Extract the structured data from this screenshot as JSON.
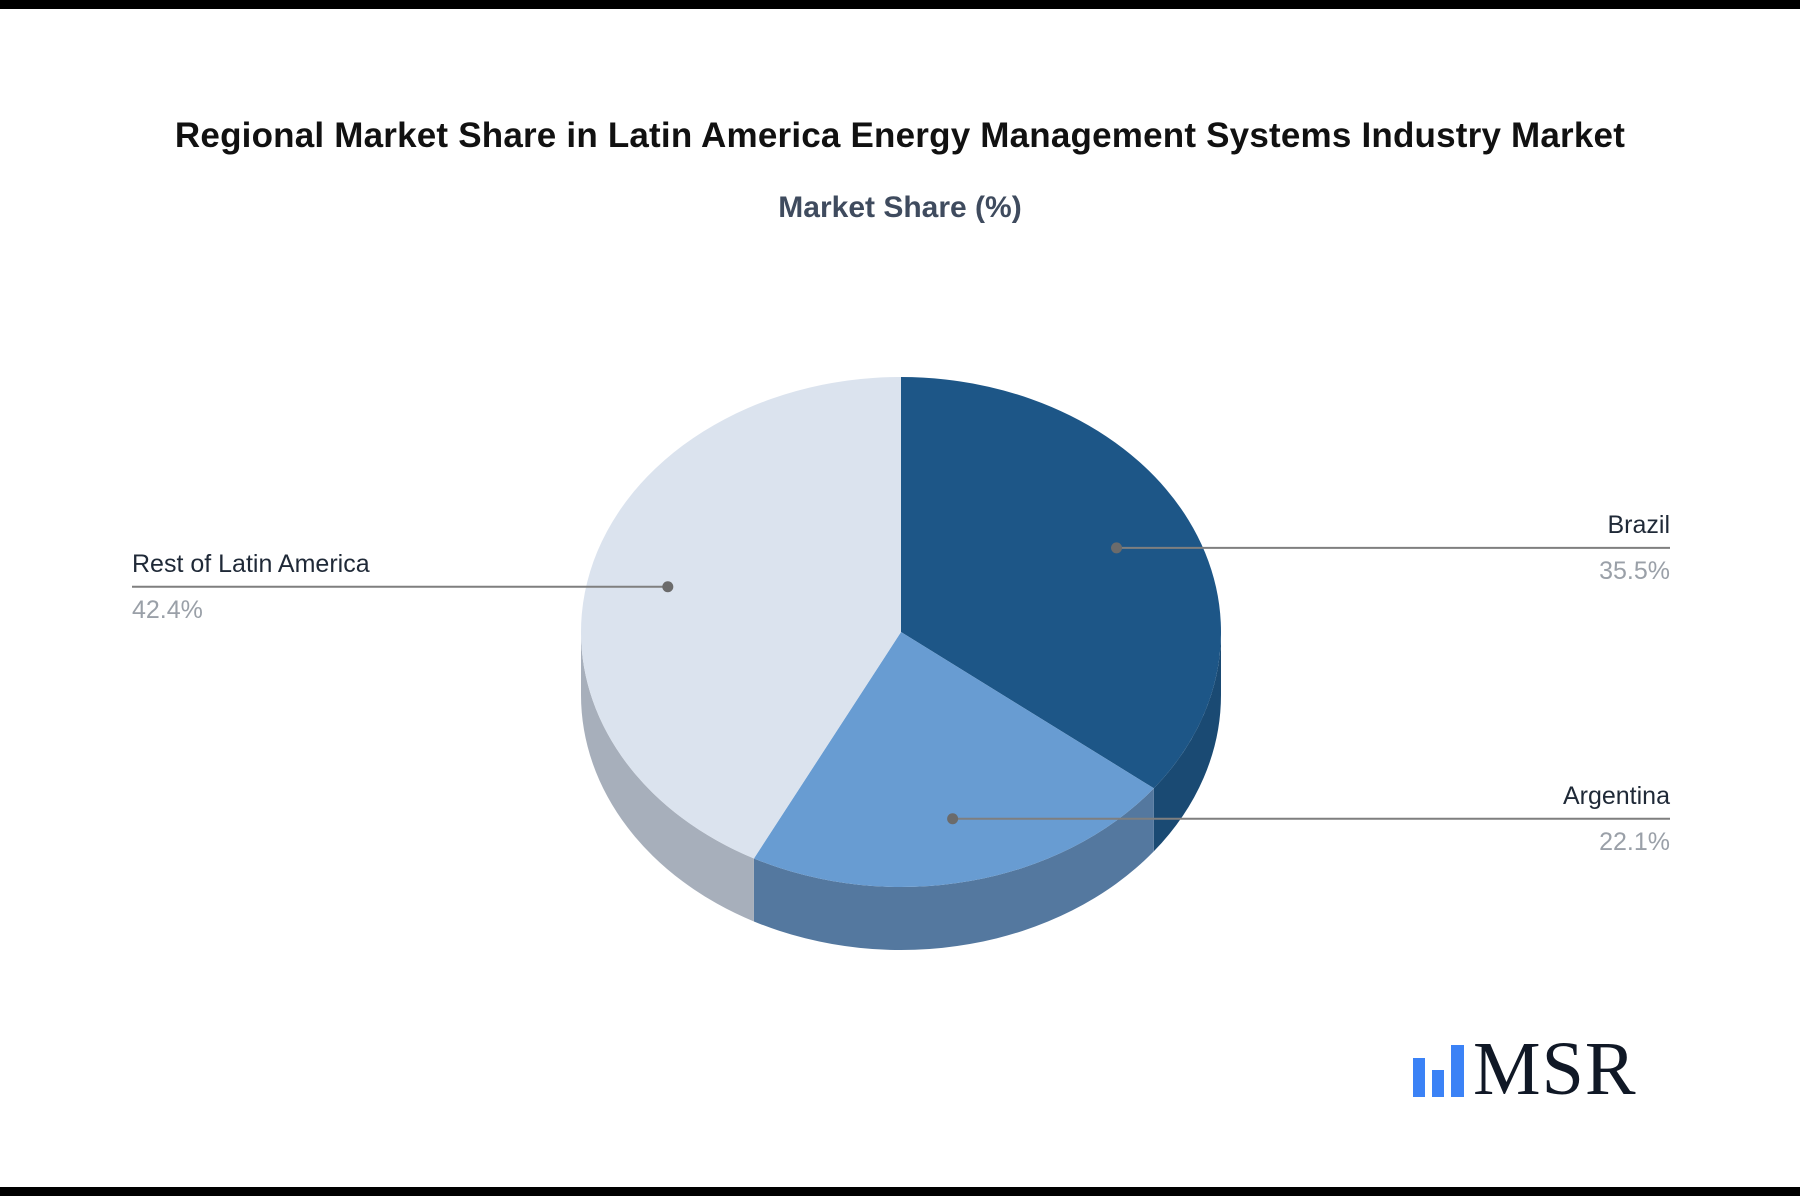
{
  "title": "Regional Market Share in Latin America Energy Management Systems Industry Market",
  "subtitle": "Market Share (%)",
  "chart_data": {
    "type": "pie",
    "style": "3d",
    "start_angle_deg": 0,
    "direction": "clockwise",
    "unit": "%",
    "categories": [
      "Brazil",
      "Argentina",
      "Rest of Latin America"
    ],
    "values": [
      35.5,
      22.1,
      42.4
    ],
    "slice_colors": [
      "#1d5687",
      "#689cd2",
      "#dbe3ee"
    ],
    "slice_side_colors": [
      "#1a4a73",
      "#54789f",
      "#a7afbb"
    ],
    "leader_line_color": "#7f7f7f",
    "leader_dot_color": "#6b6b6b",
    "legend_position": "callout-labels",
    "labels": [
      {
        "name": "Brazil",
        "value_text": "35.5%",
        "side": "right"
      },
      {
        "name": "Argentina",
        "value_text": "22.1%",
        "side": "right"
      },
      {
        "name": "Rest of Latin America",
        "value_text": "42.4%",
        "side": "left"
      }
    ]
  },
  "logo": {
    "text": "MSR",
    "bar_color": "#3b82f6",
    "text_color": "#101826"
  }
}
